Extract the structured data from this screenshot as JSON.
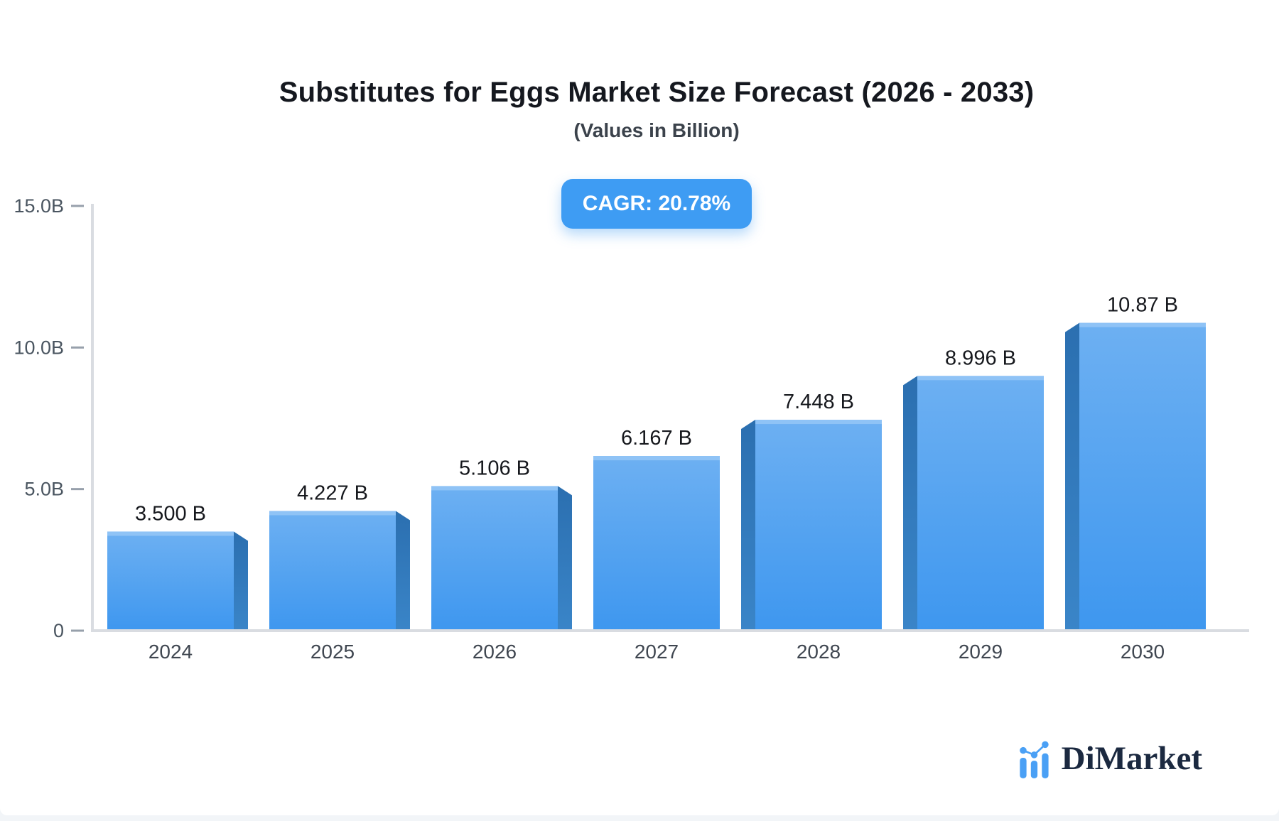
{
  "header": {
    "title": "Substitutes for Eggs Market Size Forecast (2026 - 2033)",
    "subtitle": "(Values in Billion)",
    "cagr_label": "CAGR: 20.78%"
  },
  "chart_data": {
    "type": "bar",
    "title": "Substitutes for Eggs Market Size Forecast (2026 - 2033)",
    "subtitle": "(Values in Billion)",
    "categories": [
      "2024",
      "2025",
      "2026",
      "2027",
      "2028",
      "2029",
      "2030"
    ],
    "values": [
      3.5,
      4.227,
      5.106,
      6.167,
      7.448,
      8.996,
      10.87
    ],
    "bar_labels": [
      "3.500 B",
      "4.227 B",
      "5.106 B",
      "6.167 B",
      "7.448 B",
      "8.996 B",
      "10.87 B"
    ],
    "xlabel": "",
    "ylabel": "",
    "ylim": [
      0,
      15
    ],
    "y_tick_labels": [
      "15.0B",
      "10.0B",
      "5.0B",
      "0"
    ],
    "y_tick_values": [
      15,
      10,
      5,
      0
    ],
    "grid": false,
    "legend_position": "none",
    "bar_style": "3d-beveled, perspective toward center",
    "annotation": "CAGR: 20.78%"
  },
  "colors": {
    "bar_face_top": "#6db0f2",
    "bar_face_bottom": "#3e97ef",
    "bar_top_edge": "#8fc3f6",
    "bar_side_top": "#2b6fb0",
    "bar_side_bottom": "#3a85c8",
    "badge_bg": "#3e9cf3",
    "badge_text": "#ffffff",
    "axis_line": "#d9dce1",
    "tick_dash": "#97a0ab",
    "tick_text": "#4a5560",
    "value_text": "#16181d",
    "title_text": "#15181f",
    "logo_blue": "#4aa0f5",
    "logo_navy": "#1b2940",
    "background": "#ffffff"
  },
  "footer": {
    "brand": "DiMarket"
  }
}
